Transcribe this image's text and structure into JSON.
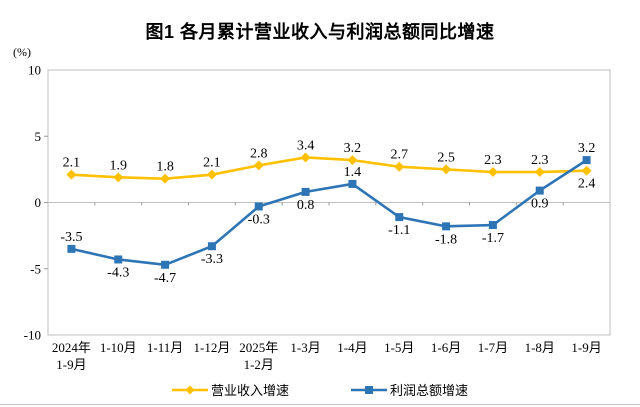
{
  "title": "图1 各月累计营业收入与利润总额同比增速",
  "y_axis": {
    "unit": "(%)",
    "ticks": [
      10,
      5,
      0,
      -5,
      -10
    ]
  },
  "colors": {
    "revenue": "#FFC000",
    "profit": "#2E75B6",
    "axis": "#BFBFBF",
    "tick": "#9B9B9B"
  },
  "chart_data": {
    "type": "line",
    "categories": [
      [
        "2024年",
        "1-9月"
      ],
      [
        "1-10月"
      ],
      [
        "1-11月"
      ],
      [
        "1-12月"
      ],
      [
        "2025年",
        "1-2月"
      ],
      [
        "1-3月"
      ],
      [
        "1-4月"
      ],
      [
        "1-5月"
      ],
      [
        "1-6月"
      ],
      [
        "1-7月"
      ],
      [
        "1-8月"
      ],
      [
        "1-9月"
      ]
    ],
    "series": [
      {
        "name": "营业收入增速",
        "color": "#FFC000",
        "marker": "diamond",
        "values": [
          2.1,
          1.9,
          1.8,
          2.1,
          2.8,
          3.4,
          3.2,
          2.7,
          2.5,
          2.3,
          2.3,
          2.4
        ],
        "label_side": [
          "above",
          "above",
          "above",
          "above",
          "above",
          "above",
          "above",
          "above",
          "above",
          "above",
          "above",
          "below"
        ]
      },
      {
        "name": "利润总额增速",
        "color": "#2E75B6",
        "marker": "square",
        "values": [
          -3.5,
          -4.3,
          -4.7,
          -3.3,
          -0.3,
          0.8,
          1.4,
          -1.1,
          -1.8,
          -1.7,
          0.9,
          3.2
        ],
        "label_side": [
          "above",
          "below",
          "below",
          "below",
          "below",
          "below",
          "above",
          "below",
          "below",
          "below",
          "below",
          "above"
        ]
      }
    ],
    "ylim": [
      -10,
      10
    ],
    "grid": "zero-line-only",
    "legend_position": "bottom"
  }
}
